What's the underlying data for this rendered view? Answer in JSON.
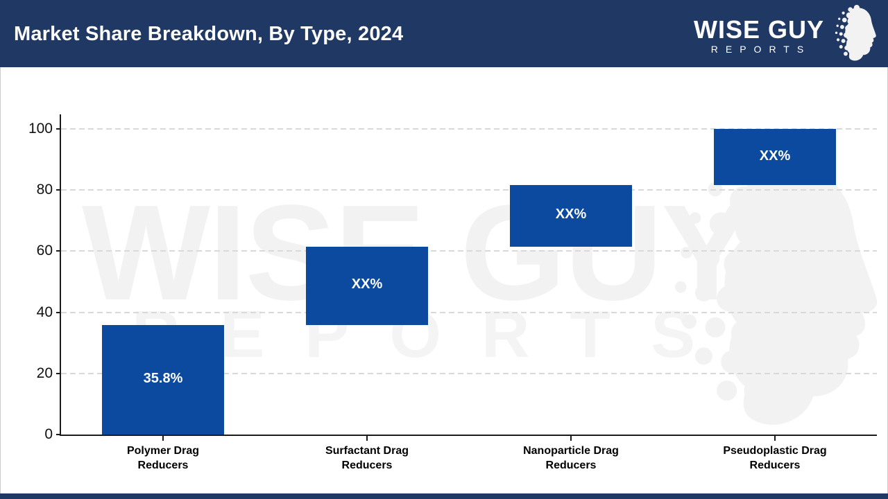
{
  "header": {
    "title": "Market Share Breakdown, By Type, 2024",
    "logo": {
      "line1": "WISE GUY",
      "line2": "REPORTS"
    }
  },
  "watermark": {
    "line1": "WISE GUY",
    "line2": "REPORTS"
  },
  "colors": {
    "header_bg": "#1f3864",
    "footer_bg": "#1f3864",
    "bar": "#0b4a9e",
    "bar_label": "#ffffff",
    "axis": "#1a1a1a",
    "grid": "#d9d9d9",
    "tick_label": "#111111",
    "watermark": "#f2f2f3"
  },
  "chart_data": {
    "type": "bar",
    "subtype": "waterfall",
    "title": "Market Share Breakdown, By Type, 2024",
    "xlabel": "",
    "ylabel": "",
    "ylim": [
      0,
      105
    ],
    "y_ticks": [
      0,
      20,
      40,
      60,
      80,
      100
    ],
    "grid": "horizontal-dashed",
    "legend": "none",
    "categories": [
      "Polymer Drag Reducers",
      "Surfactant Drag Reducers",
      "Nanoparticle Drag Reducers",
      "Pseudoplastic Drag Reducers"
    ],
    "category_lines": [
      [
        "Polymer Drag",
        "Reducers"
      ],
      [
        "Surfactant Drag",
        "Reducers"
      ],
      [
        "Nanoparticle Drag",
        "Reducers"
      ],
      [
        "Pseudoplastic Drag",
        "Reducers"
      ]
    ],
    "segments": [
      {
        "category": "Polymer Drag Reducers",
        "start": 0,
        "end": 35.8,
        "label": "35.8%"
      },
      {
        "category": "Surfactant Drag Reducers",
        "start": 35.8,
        "end": 61.5,
        "label": "XX%"
      },
      {
        "category": "Nanoparticle Drag Reducers",
        "start": 61.5,
        "end": 81.6,
        "label": "XX%"
      },
      {
        "category": "Pseudoplastic Drag Reducers",
        "start": 81.6,
        "end": 100,
        "label": "XX%"
      }
    ]
  }
}
